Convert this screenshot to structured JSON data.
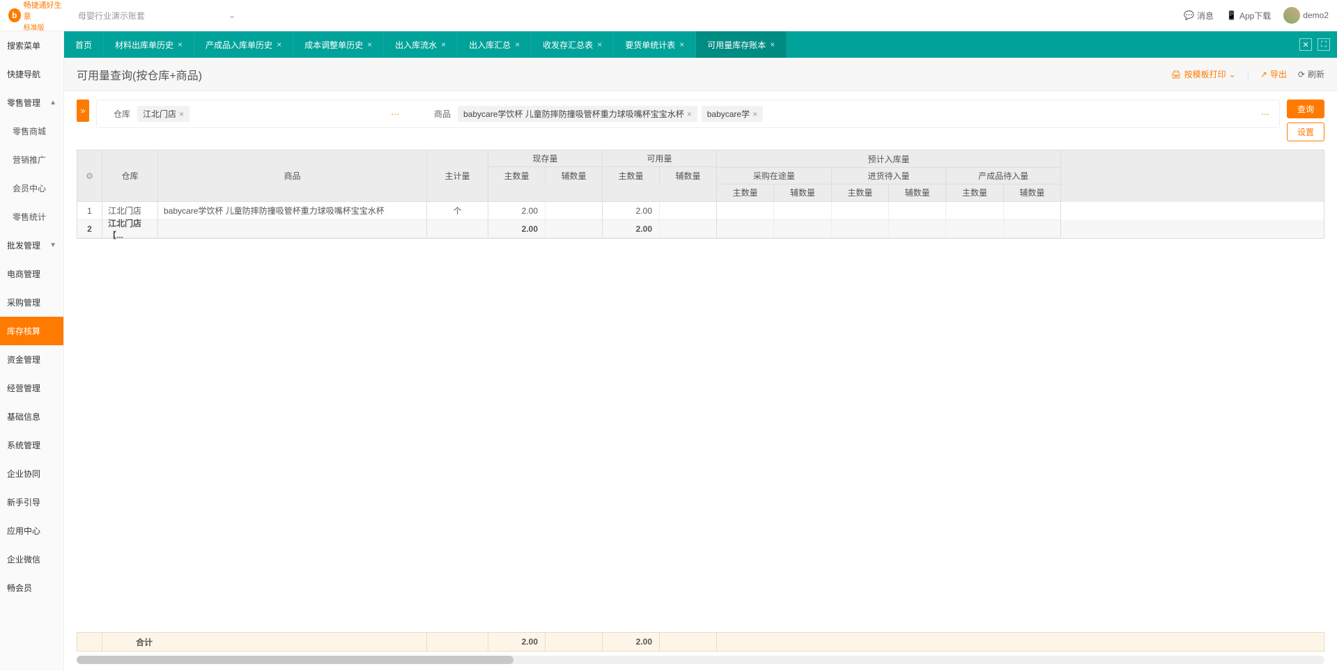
{
  "header": {
    "logo_text": "畅捷通好生意",
    "logo_sub": "标准版",
    "org": "母婴行业演示账套",
    "messages": "消息",
    "app_download": "App下载",
    "user": "demo2"
  },
  "sidebar": {
    "items": [
      {
        "label": "搜索菜单",
        "type": "top"
      },
      {
        "label": "快捷导航",
        "type": "top"
      },
      {
        "label": "零售管理",
        "type": "expand",
        "caret": "▲"
      },
      {
        "label": "零售商城",
        "type": "sub"
      },
      {
        "label": "营销推广",
        "type": "sub"
      },
      {
        "label": "会员中心",
        "type": "sub"
      },
      {
        "label": "零售统计",
        "type": "sub"
      },
      {
        "label": "批发管理",
        "type": "expand",
        "caret": "▼"
      },
      {
        "label": "电商管理",
        "type": "top"
      },
      {
        "label": "采购管理",
        "type": "top"
      },
      {
        "label": "库存核算",
        "type": "active"
      },
      {
        "label": "资金管理",
        "type": "top"
      },
      {
        "label": "经营管理",
        "type": "top"
      },
      {
        "label": "基础信息",
        "type": "top"
      },
      {
        "label": "系统管理",
        "type": "top"
      },
      {
        "label": "企业协同",
        "type": "top"
      },
      {
        "label": "新手引导",
        "type": "top"
      },
      {
        "label": "应用中心",
        "type": "top"
      },
      {
        "label": "企业微信",
        "type": "top"
      },
      {
        "label": "畅会员",
        "type": "top"
      }
    ]
  },
  "tabs": {
    "items": [
      {
        "label": "首页",
        "closable": false
      },
      {
        "label": "材料出库单历史",
        "closable": true
      },
      {
        "label": "产成品入库单历史",
        "closable": true
      },
      {
        "label": "成本调整单历史",
        "closable": true
      },
      {
        "label": "出入库流水",
        "closable": true
      },
      {
        "label": "出入库汇总",
        "closable": true
      },
      {
        "label": "收发存汇总表",
        "closable": true
      },
      {
        "label": "要货单统计表",
        "closable": true
      },
      {
        "label": "可用量库存账本",
        "closable": true,
        "active": true
      }
    ]
  },
  "page": {
    "title": "可用量查询(按仓库+商品)",
    "actions": {
      "print": "按模板打印",
      "export": "导出",
      "refresh": "刷新"
    }
  },
  "filter": {
    "warehouse_label": "仓库",
    "warehouse_tags": [
      "江北门店"
    ],
    "product_label": "商品",
    "product_tags": [
      "babycare学饮杯 儿童防摔防撞吸管杯重力球吸嘴杯宝宝水杯",
      "babycare学"
    ],
    "query_btn": "查询",
    "settings_btn": "设置"
  },
  "table": {
    "headers": {
      "warehouse": "仓库",
      "product": "商品",
      "unit": "主计量",
      "stock": "现存量",
      "available": "可用量",
      "forecast": "预计入库量",
      "main_qty": "主数量",
      "aux_qty": "辅数量",
      "purchase_transit": "采购在途量",
      "incoming_pending": "进货待入量",
      "finished_pending": "产成品待入量"
    },
    "rows": [
      {
        "idx": "1",
        "warehouse": "江北门店",
        "product": "babycare学饮杯 儿童防摔防撞吸管杯重力球吸嘴杯宝宝水杯",
        "unit": "个",
        "stock_main": "2.00",
        "stock_aux": "",
        "avail_main": "2.00",
        "avail_aux": ""
      },
      {
        "idx": "2",
        "warehouse": "江北门店【...",
        "product": "",
        "unit": "",
        "stock_main": "2.00",
        "stock_aux": "",
        "avail_main": "2.00",
        "avail_aux": "",
        "bold": true
      }
    ],
    "total": {
      "label": "合计",
      "stock_main": "2.00",
      "avail_main": "2.00"
    }
  }
}
